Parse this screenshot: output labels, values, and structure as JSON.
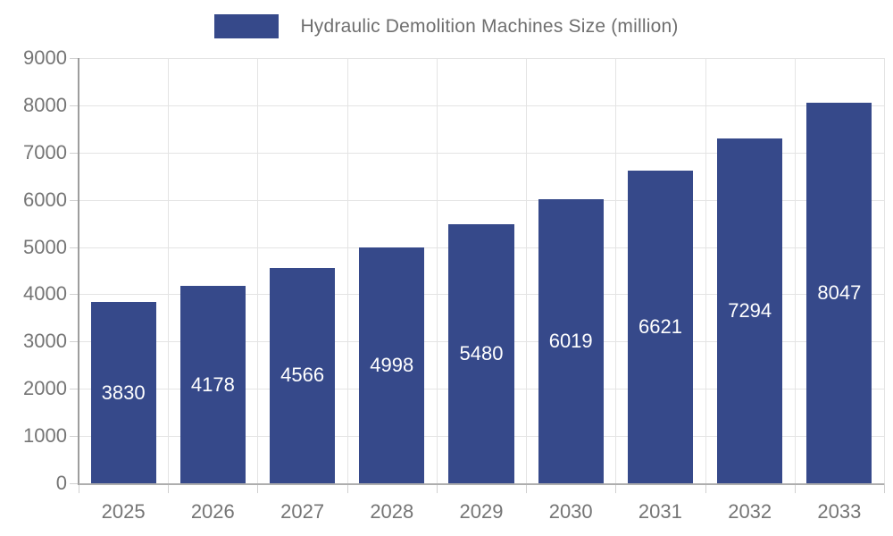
{
  "legend": {
    "label": "Hydraulic Demolition Machines Size (million)"
  },
  "colors": {
    "bar": "#36498a",
    "grid": "#e4e4e4",
    "axis_y": "#9d9d9d",
    "axis_x": "#aeaeae",
    "tick": "#d0d0d0",
    "tick_text": "#757575",
    "legend_text": "#6f6f6f",
    "value_text": "#ffffff",
    "background": "#ffffff"
  },
  "chart_data": {
    "type": "bar",
    "title": "Hydraulic Demolition Machines Size (million)",
    "categories": [
      "2025",
      "2026",
      "2027",
      "2028",
      "2029",
      "2030",
      "2031",
      "2032",
      "2033"
    ],
    "values": [
      3830,
      4178,
      4566,
      4998,
      5480,
      6019,
      6621,
      7294,
      8047
    ],
    "series_color": "#36498a",
    "xlabel": "",
    "ylabel": "",
    "ylim": [
      0,
      9000
    ],
    "ytick_step": 1000,
    "yticks": [
      0,
      1000,
      2000,
      3000,
      4000,
      5000,
      6000,
      7000,
      8000,
      9000
    ],
    "grid": true,
    "grid_vertical": true,
    "legend_position": "top-center",
    "value_labels": "inside-center",
    "bar_width_fraction": 0.73
  }
}
